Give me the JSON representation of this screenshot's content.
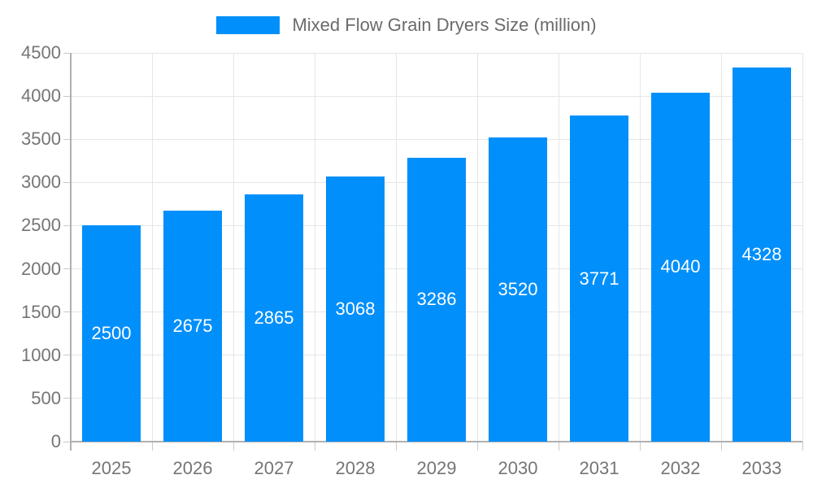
{
  "chart_data": {
    "type": "bar",
    "title": "Mixed Flow Grain Dryers Size (million)",
    "categories": [
      "2025",
      "2026",
      "2027",
      "2028",
      "2029",
      "2030",
      "2031",
      "2032",
      "2033"
    ],
    "series": [
      {
        "name": "Mixed Flow Grain Dryers Size (million)",
        "values": [
          2500,
          2675,
          2865,
          3068,
          3286,
          3520,
          3771,
          4040,
          4328
        ]
      }
    ],
    "values": [
      2500,
      2675,
      2865,
      3068,
      3286,
      3520,
      3771,
      4040,
      4328
    ],
    "value_labels": [
      "2500",
      "2675",
      "2865",
      "3068",
      "3286",
      "3520",
      "3771",
      "4040",
      "4328"
    ],
    "xlabel": "",
    "ylabel": "",
    "ylim": [
      0,
      4500
    ],
    "ytick_step": 500,
    "yticks": [
      0,
      500,
      1000,
      1500,
      2000,
      2500,
      3000,
      3500,
      4000,
      4500
    ],
    "grid": true,
    "legend_position": "top"
  },
  "colors": {
    "bar": "#008FFB",
    "grid": "#e6e6e6",
    "axis_line": "#b0b0b0",
    "tick": "#c9c9c9",
    "axis_text": "#757575",
    "legend_text": "#6b6b6b",
    "value_text": "#ffffff",
    "background": "#ffffff"
  }
}
